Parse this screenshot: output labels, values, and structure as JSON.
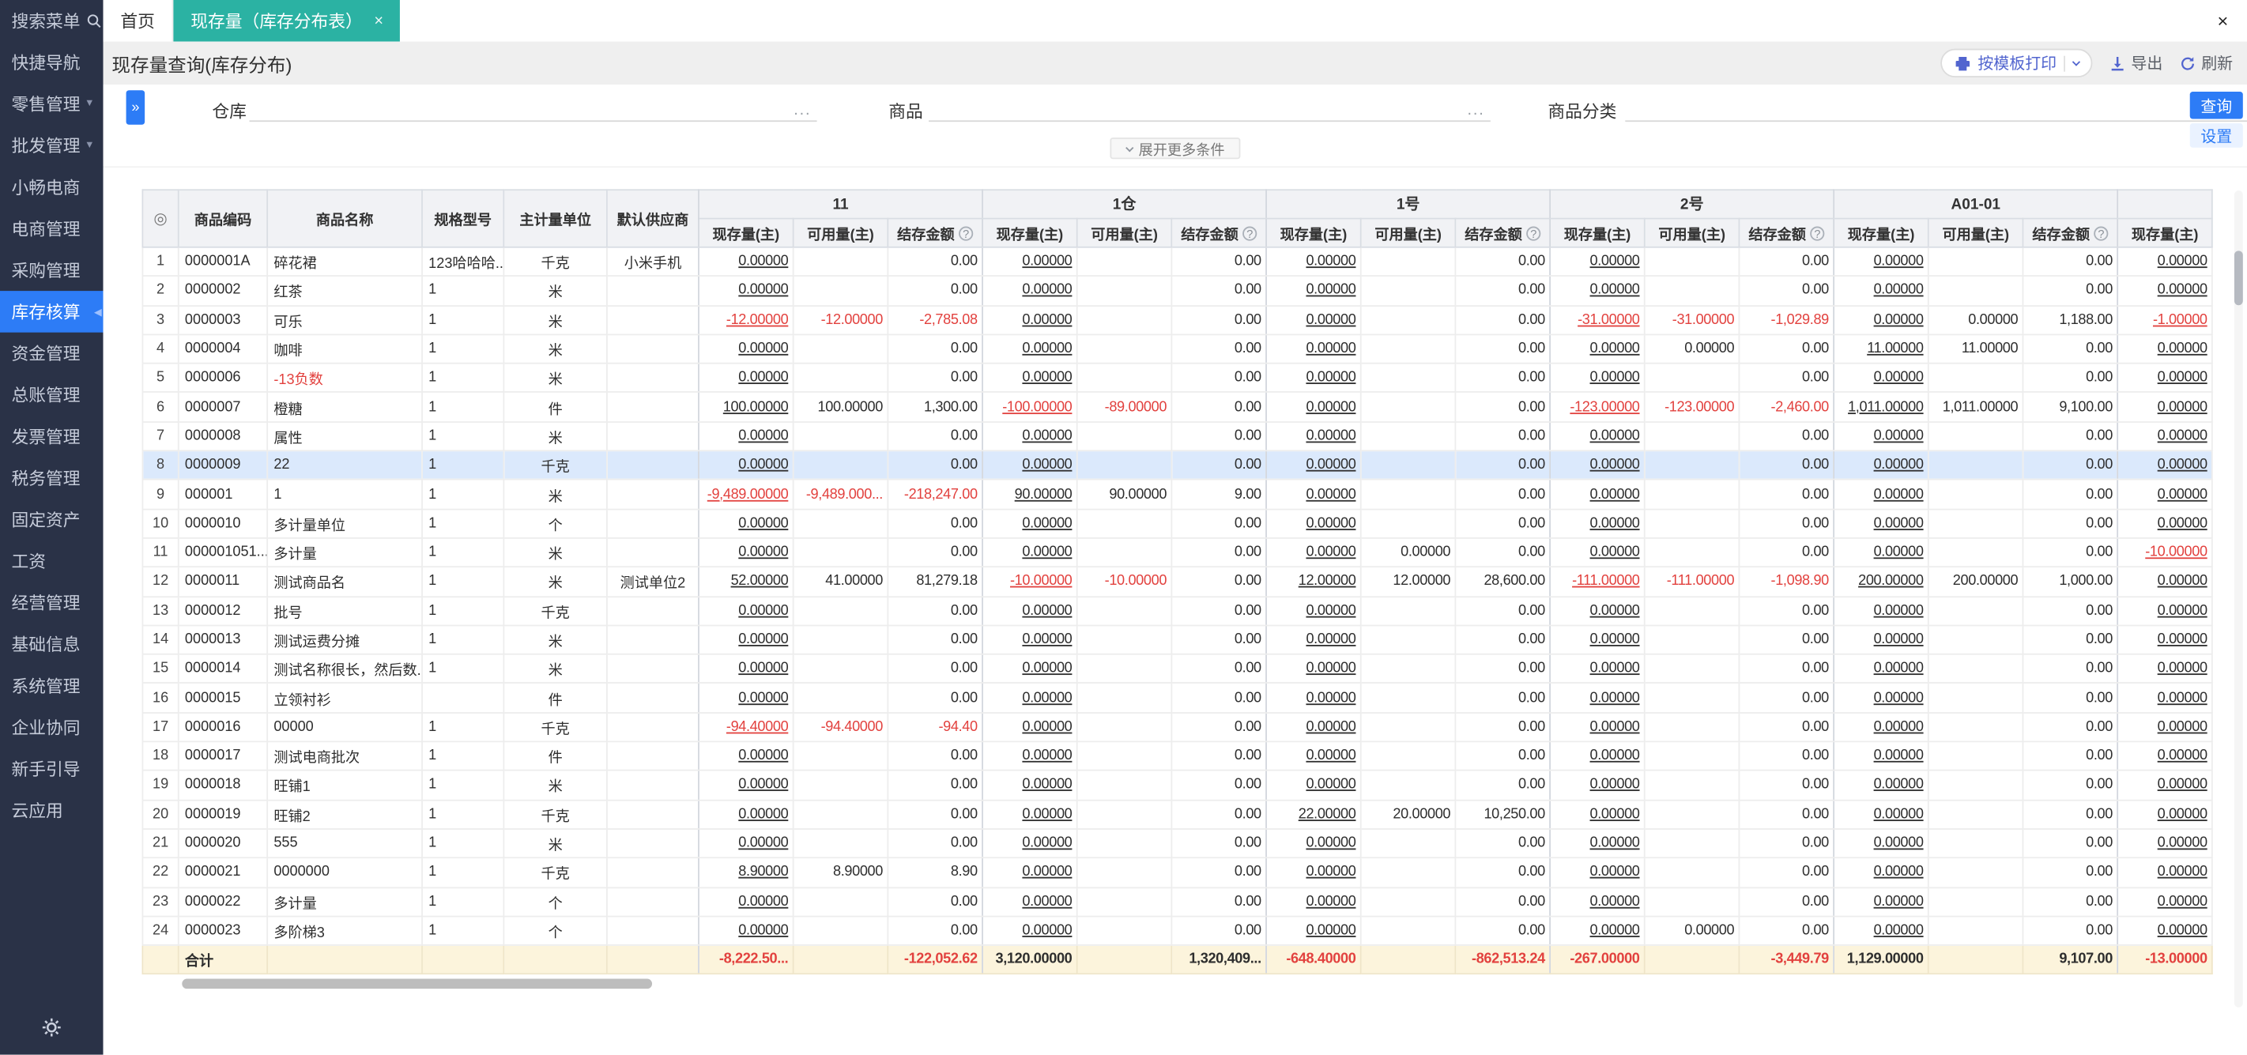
{
  "window": {
    "close_icon": "×"
  },
  "tabs": {
    "home": "首页",
    "active": "现存量（库存分布表）",
    "active_close": "×"
  },
  "sidebar": {
    "items": [
      {
        "label": "搜索菜单",
        "icon": "search"
      },
      {
        "label": "快捷导航"
      },
      {
        "label": "零售管理",
        "caret": true
      },
      {
        "label": "批发管理",
        "caret": true
      },
      {
        "label": "小畅电商"
      },
      {
        "label": "电商管理"
      },
      {
        "label": "采购管理"
      },
      {
        "label": "库存核算",
        "selected": true
      },
      {
        "label": "资金管理"
      },
      {
        "label": "总账管理"
      },
      {
        "label": "发票管理"
      },
      {
        "label": "税务管理"
      },
      {
        "label": "固定资产"
      },
      {
        "label": "工资"
      },
      {
        "label": "经营管理"
      },
      {
        "label": "基础信息"
      },
      {
        "label": "系统管理"
      },
      {
        "label": "企业协同"
      },
      {
        "label": "新手引导"
      },
      {
        "label": "云应用"
      }
    ]
  },
  "header": {
    "title": "现存量查询(库存分布)",
    "print_button": "按模板打印",
    "export_button": "导出",
    "refresh_button": "刷新"
  },
  "filters": {
    "expand_icon": "»",
    "warehouse_label": "仓库",
    "goods_label": "商品",
    "category_label": "商品分类",
    "picker_ellipsis": "...",
    "query_button": "查询",
    "settings_button": "设置",
    "expand_more": "展开更多条件"
  },
  "colors": {
    "accent_blue": "#2d7cf6",
    "tab_active_teal": "#2bb2a3",
    "sidebar_bg": "#2a3247",
    "negative_red": "#e2413e",
    "selected_row_bg": "#dbe9fc",
    "total_row_bg": "#fcf4dc"
  },
  "table": {
    "selector_icon": "◎",
    "help_icon": "?",
    "fixed_headers": [
      "商品编码",
      "商品名称",
      "规格型号",
      "主计量单位",
      "默认供应商"
    ],
    "groups": [
      "11",
      "1仓",
      "1号",
      "2号",
      "A01-01"
    ],
    "sub_headers": [
      "现存量(主)",
      "可用量(主)",
      "结存金额"
    ],
    "partial_header": "现存量(主)",
    "total_label": "合计",
    "rows": [
      {
        "no": 1,
        "code": "0000001A",
        "name": "碎花裙",
        "spec": "123哈哈哈...",
        "unit": "千克",
        "supplier": "小米手机",
        "cells": [
          "0.00000",
          "",
          "0.00",
          "0.00000",
          "",
          "0.00",
          "0.00000",
          "",
          "0.00",
          "0.00000",
          "",
          "0.00",
          "0.00000",
          "",
          "0.00",
          "0.00000"
        ]
      },
      {
        "no": 2,
        "code": "0000002",
        "name": "红茶",
        "spec": "1",
        "unit": "米",
        "supplier": "",
        "cells": [
          "0.00000",
          "",
          "0.00",
          "0.00000",
          "",
          "0.00",
          "0.00000",
          "",
          "0.00",
          "0.00000",
          "",
          "0.00",
          "0.00000",
          "",
          "0.00",
          "0.00000"
        ]
      },
      {
        "no": 3,
        "code": "0000003",
        "name": "可乐",
        "spec": "1",
        "unit": "米",
        "supplier": "",
        "cells": [
          "-12.00000",
          "-12.00000",
          "-2,785.08",
          "0.00000",
          "",
          "0.00",
          "0.00000",
          "",
          "0.00",
          "-31.00000",
          "-31.00000",
          "-1,029.89",
          "0.00000",
          "0.00000",
          "1,188.00",
          "-1.00000"
        ]
      },
      {
        "no": 4,
        "code": "0000004",
        "name": "咖啡",
        "spec": "1",
        "unit": "米",
        "supplier": "",
        "cells": [
          "0.00000",
          "",
          "0.00",
          "0.00000",
          "",
          "0.00",
          "0.00000",
          "",
          "0.00",
          "0.00000",
          "0.00000",
          "0.00",
          "11.00000",
          "11.00000",
          "0.00",
          "0.00000"
        ]
      },
      {
        "no": 5,
        "code": "0000006",
        "name": "-13负数",
        "spec": "1",
        "unit": "米",
        "supplier": "",
        "cells": [
          "0.00000",
          "",
          "0.00",
          "0.00000",
          "",
          "0.00",
          "0.00000",
          "",
          "0.00",
          "0.00000",
          "",
          "0.00",
          "0.00000",
          "",
          "0.00",
          "0.00000"
        ]
      },
      {
        "no": 6,
        "code": "0000007",
        "name": "橙糖",
        "spec": "1",
        "unit": "件",
        "supplier": "",
        "cells": [
          "100.00000",
          "100.00000",
          "1,300.00",
          "-100.00000",
          "-89.00000",
          "0.00",
          "0.00000",
          "",
          "0.00",
          "-123.00000",
          "-123.00000",
          "-2,460.00",
          "1,011.00000",
          "1,011.00000",
          "9,100.00",
          "0.00000"
        ]
      },
      {
        "no": 7,
        "code": "0000008",
        "name": "属性",
        "spec": "1",
        "unit": "米",
        "supplier": "",
        "cells": [
          "0.00000",
          "",
          "0.00",
          "0.00000",
          "",
          "0.00",
          "0.00000",
          "",
          "0.00",
          "0.00000",
          "",
          "0.00",
          "0.00000",
          "",
          "0.00",
          "0.00000"
        ]
      },
      {
        "no": 8,
        "code": "0000009",
        "name": "22",
        "spec": "1",
        "unit": "千克",
        "supplier": "",
        "selected": true,
        "cells": [
          "0.00000",
          "",
          "0.00",
          "0.00000",
          "",
          "0.00",
          "0.00000",
          "",
          "0.00",
          "0.00000",
          "",
          "0.00",
          "0.00000",
          "",
          "0.00",
          "0.00000"
        ]
      },
      {
        "no": 9,
        "code": "000001",
        "name": "1",
        "spec": "1",
        "unit": "米",
        "supplier": "",
        "cells": [
          "-9,489.00000",
          "-9,489.000...",
          "-218,247.00",
          "90.00000",
          "90.00000",
          "9.00",
          "0.00000",
          "",
          "0.00",
          "0.00000",
          "",
          "0.00",
          "0.00000",
          "",
          "0.00",
          "0.00000"
        ]
      },
      {
        "no": 10,
        "code": "0000010",
        "name": "多计量单位",
        "spec": "1",
        "unit": "个",
        "supplier": "",
        "cells": [
          "0.00000",
          "",
          "0.00",
          "0.00000",
          "",
          "0.00",
          "0.00000",
          "",
          "0.00",
          "0.00000",
          "",
          "0.00",
          "0.00000",
          "",
          "0.00",
          "0.00000"
        ]
      },
      {
        "no": 11,
        "code": "000001051...",
        "name": "多计量",
        "spec": "1",
        "unit": "米",
        "supplier": "",
        "cells": [
          "0.00000",
          "",
          "0.00",
          "0.00000",
          "",
          "0.00",
          "0.00000",
          "0.00000",
          "0.00",
          "0.00000",
          "",
          "0.00",
          "0.00000",
          "",
          "0.00",
          "-10.00000"
        ]
      },
      {
        "no": 12,
        "code": "0000011",
        "name": "测试商品名",
        "spec": "1",
        "unit": "米",
        "supplier": "测试单位2",
        "cells": [
          "52.00000",
          "41.00000",
          "81,279.18",
          "-10.00000",
          "-10.00000",
          "0.00",
          "12.00000",
          "12.00000",
          "28,600.00",
          "-111.00000",
          "-111.00000",
          "-1,098.90",
          "200.00000",
          "200.00000",
          "1,000.00",
          "0.00000"
        ]
      },
      {
        "no": 13,
        "code": "0000012",
        "name": "批号",
        "spec": "1",
        "unit": "千克",
        "supplier": "",
        "cells": [
          "0.00000",
          "",
          "0.00",
          "0.00000",
          "",
          "0.00",
          "0.00000",
          "",
          "0.00",
          "0.00000",
          "",
          "0.00",
          "0.00000",
          "",
          "0.00",
          "0.00000"
        ]
      },
      {
        "no": 14,
        "code": "0000013",
        "name": "测试运费分摊",
        "spec": "1",
        "unit": "米",
        "supplier": "",
        "cells": [
          "0.00000",
          "",
          "0.00",
          "0.00000",
          "",
          "0.00",
          "0.00000",
          "",
          "0.00",
          "0.00000",
          "",
          "0.00",
          "0.00000",
          "",
          "0.00",
          "0.00000"
        ]
      },
      {
        "no": 15,
        "code": "0000014",
        "name": "测试名称很长，然后数...",
        "spec": "1",
        "unit": "米",
        "supplier": "",
        "cells": [
          "0.00000",
          "",
          "0.00",
          "0.00000",
          "",
          "0.00",
          "0.00000",
          "",
          "0.00",
          "0.00000",
          "",
          "0.00",
          "0.00000",
          "",
          "0.00",
          "0.00000"
        ]
      },
      {
        "no": 16,
        "code": "0000015",
        "name": "立领衬衫",
        "spec": "",
        "unit": "件",
        "supplier": "",
        "cells": [
          "0.00000",
          "",
          "0.00",
          "0.00000",
          "",
          "0.00",
          "0.00000",
          "",
          "0.00",
          "0.00000",
          "",
          "0.00",
          "0.00000",
          "",
          "0.00",
          "0.00000"
        ]
      },
      {
        "no": 17,
        "code": "0000016",
        "name": "00000",
        "spec": "1",
        "unit": "千克",
        "supplier": "",
        "cells": [
          "-94.40000",
          "-94.40000",
          "-94.40",
          "0.00000",
          "",
          "0.00",
          "0.00000",
          "",
          "0.00",
          "0.00000",
          "",
          "0.00",
          "0.00000",
          "",
          "0.00",
          "0.00000"
        ]
      },
      {
        "no": 18,
        "code": "0000017",
        "name": "测试电商批次",
        "spec": "1",
        "unit": "件",
        "supplier": "",
        "cells": [
          "0.00000",
          "",
          "0.00",
          "0.00000",
          "",
          "0.00",
          "0.00000",
          "",
          "0.00",
          "0.00000",
          "",
          "0.00",
          "0.00000",
          "",
          "0.00",
          "0.00000"
        ]
      },
      {
        "no": 19,
        "code": "0000018",
        "name": "旺铺1",
        "spec": "1",
        "unit": "米",
        "supplier": "",
        "cells": [
          "0.00000",
          "",
          "0.00",
          "0.00000",
          "",
          "0.00",
          "0.00000",
          "",
          "0.00",
          "0.00000",
          "",
          "0.00",
          "0.00000",
          "",
          "0.00",
          "0.00000"
        ]
      },
      {
        "no": 20,
        "code": "0000019",
        "name": "旺铺2",
        "spec": "1",
        "unit": "千克",
        "supplier": "",
        "cells": [
          "0.00000",
          "",
          "0.00",
          "0.00000",
          "",
          "0.00",
          "22.00000",
          "20.00000",
          "10,250.00",
          "0.00000",
          "",
          "0.00",
          "0.00000",
          "",
          "0.00",
          "0.00000"
        ]
      },
      {
        "no": 21,
        "code": "0000020",
        "name": "555",
        "spec": "1",
        "unit": "米",
        "supplier": "",
        "cells": [
          "0.00000",
          "",
          "0.00",
          "0.00000",
          "",
          "0.00",
          "0.00000",
          "",
          "0.00",
          "0.00000",
          "",
          "0.00",
          "0.00000",
          "",
          "0.00",
          "0.00000"
        ]
      },
      {
        "no": 22,
        "code": "0000021",
        "name": "0000000",
        "spec": "1",
        "unit": "千克",
        "supplier": "",
        "cells": [
          "8.90000",
          "8.90000",
          "8.90",
          "0.00000",
          "",
          "0.00",
          "0.00000",
          "",
          "0.00",
          "0.00000",
          "",
          "0.00",
          "0.00000",
          "",
          "0.00",
          "0.00000"
        ]
      },
      {
        "no": 23,
        "code": "0000022",
        "name": "多计量",
        "spec": "1",
        "unit": "个",
        "supplier": "",
        "cells": [
          "0.00000",
          "",
          "0.00",
          "0.00000",
          "",
          "0.00",
          "0.00000",
          "",
          "0.00",
          "0.00000",
          "",
          "0.00",
          "0.00000",
          "",
          "0.00",
          "0.00000"
        ]
      },
      {
        "no": 24,
        "code": "0000023",
        "name": "多阶梯3",
        "spec": "1",
        "unit": "个",
        "supplier": "",
        "cells": [
          "0.00000",
          "",
          "0.00",
          "0.00000",
          "",
          "0.00",
          "0.00000",
          "",
          "0.00",
          "0.00000",
          "0.00000",
          "0.00",
          "0.00000",
          "",
          "0.00",
          "0.00000"
        ]
      }
    ],
    "total_cells": [
      "-8,222.50...",
      "",
      "-122,052.62",
      "3,120.00000",
      "",
      "1,320,409...",
      "-648.40000",
      "",
      "-862,513.24",
      "-267.00000",
      "",
      "-3,449.79",
      "1,129.00000",
      "",
      "9,107.00",
      "-13.00000"
    ]
  }
}
